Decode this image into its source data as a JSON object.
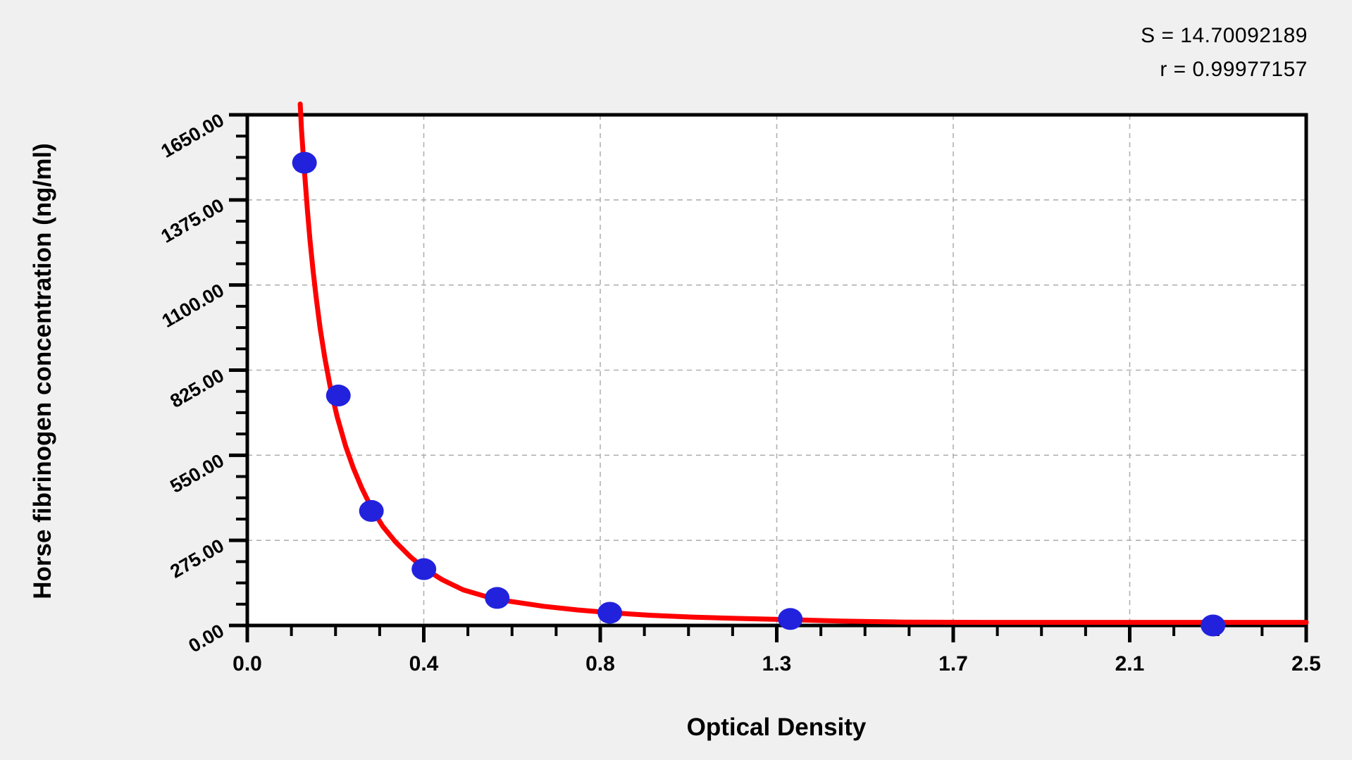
{
  "figure": {
    "background_color": "#f0f0f0",
    "plot_background_color": "#ffffff",
    "border_color": "#000000"
  },
  "chart_data": {
    "type": "scatter",
    "title": "",
    "xlabel": "Optical Density",
    "ylabel": "Horse fibrinogen concentration (ng/ml)",
    "stats": {
      "s": "S = 14.70092189",
      "r": "r = 0.99977157"
    },
    "xlim": [
      0,
      2.5
    ],
    "ylim": [
      0,
      1650
    ],
    "x_ticks": {
      "values": [
        0,
        0.41667,
        0.83333,
        1.25,
        1.66667,
        2.08333,
        2.5
      ],
      "labels": [
        "0.0",
        "0.4",
        "0.8",
        "1.3",
        "1.7",
        "2.1",
        "2.5"
      ],
      "minor_divisions": 4
    },
    "y_ticks": {
      "values": [
        0,
        275,
        550,
        825,
        1100,
        1375,
        1650
      ],
      "labels": [
        "0.00",
        "275.00",
        "550.00",
        "825.00",
        "1100.00",
        "1375.00",
        "1650.00"
      ],
      "minor_divisions": 4
    },
    "grid": {
      "style": "dashed",
      "color": "#b0b0b0",
      "horizontal": true,
      "vertical": true
    },
    "legend": "none",
    "series": [
      {
        "name": "standard-points",
        "type": "scatter",
        "color": "#2222dd",
        "marker": "ellipse",
        "x": [
          0.135,
          0.215,
          0.293,
          0.417,
          0.59,
          0.856,
          1.282,
          2.28
        ],
        "y": [
          1495,
          743,
          370,
          182,
          89,
          41,
          21,
          0
        ]
      },
      {
        "name": "fitted-curve",
        "type": "line",
        "color": "#ff0000",
        "points": [
          [
            0.125,
            1685
          ],
          [
            0.128,
            1600
          ],
          [
            0.132,
            1520
          ],
          [
            0.137,
            1430
          ],
          [
            0.142,
            1340
          ],
          [
            0.148,
            1245
          ],
          [
            0.155,
            1150
          ],
          [
            0.163,
            1055
          ],
          [
            0.172,
            960
          ],
          [
            0.183,
            865
          ],
          [
            0.196,
            770
          ],
          [
            0.212,
            675
          ],
          [
            0.232,
            580
          ],
          [
            0.25,
            510
          ],
          [
            0.27,
            445
          ],
          [
            0.293,
            380
          ],
          [
            0.32,
            320
          ],
          [
            0.35,
            270
          ],
          [
            0.385,
            222
          ],
          [
            0.417,
            185
          ],
          [
            0.46,
            148
          ],
          [
            0.51,
            115
          ],
          [
            0.56,
            95
          ],
          [
            0.62,
            78
          ],
          [
            0.7,
            62
          ],
          [
            0.78,
            50
          ],
          [
            0.86,
            41
          ],
          [
            0.95,
            33
          ],
          [
            1.05,
            27
          ],
          [
            1.15,
            23
          ],
          [
            1.28,
            19
          ],
          [
            1.4,
            14
          ],
          [
            1.55,
            11
          ],
          [
            1.75,
            10
          ],
          [
            2.0,
            10
          ],
          [
            2.28,
            10
          ],
          [
            2.5,
            10
          ]
        ]
      }
    ]
  }
}
